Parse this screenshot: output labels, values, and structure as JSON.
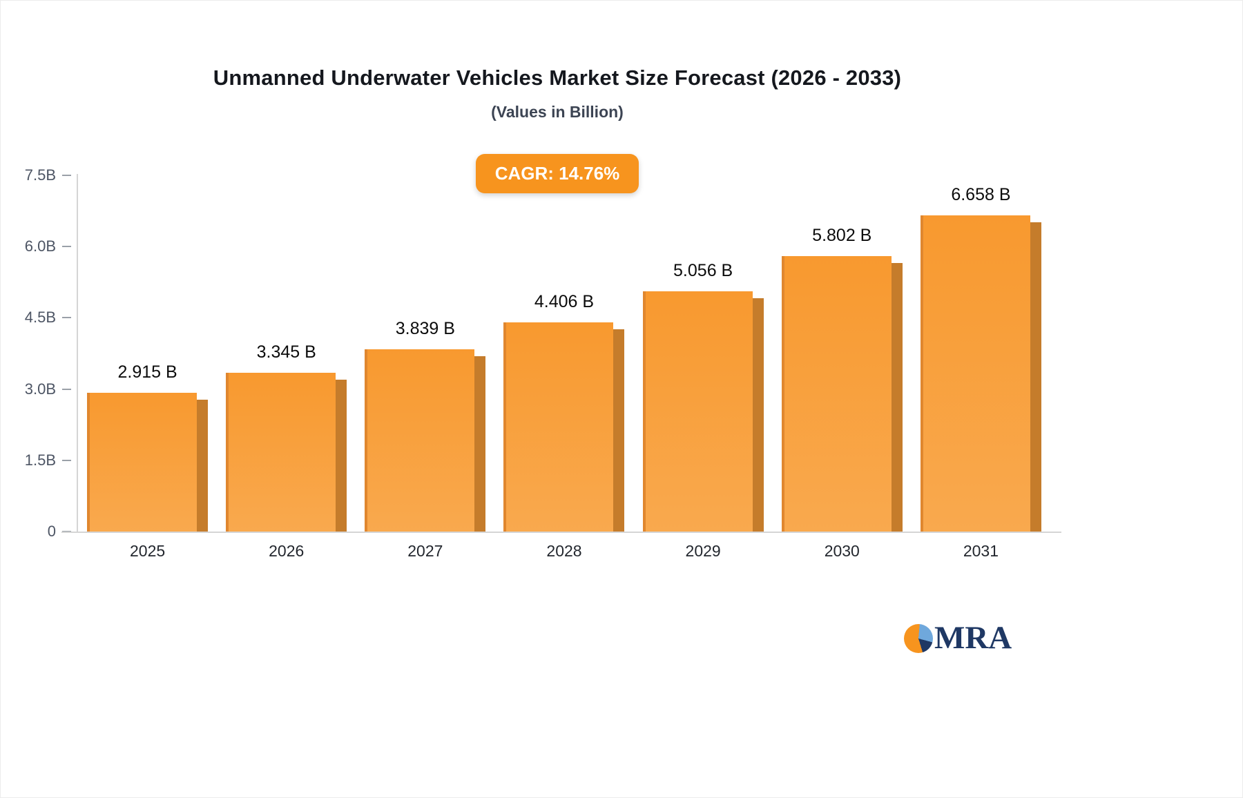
{
  "chart_data": {
    "type": "bar",
    "title": "Unmanned Underwater Vehicles Market Size Forecast (2026 - 2033)",
    "subtitle": "(Values in Billion)",
    "categories": [
      "2025",
      "2026",
      "2027",
      "2028",
      "2029",
      "2030",
      "2031"
    ],
    "values": [
      2.915,
      3.345,
      3.839,
      4.406,
      5.056,
      5.802,
      6.658
    ],
    "value_labels": [
      "2.915 B",
      "3.345 B",
      "3.839 B",
      "4.406 B",
      "5.056 B",
      "5.802 B",
      "6.658 B"
    ],
    "xlabel": "",
    "ylabel": "",
    "ylim": [
      0,
      7.5
    ],
    "y_ticks": [
      {
        "label": "0",
        "value": 0
      },
      {
        "label": "1.5B",
        "value": 1.5
      },
      {
        "label": "3.0B",
        "value": 3.0
      },
      {
        "label": "4.5B",
        "value": 4.5
      },
      {
        "label": "6.0B",
        "value": 6.0
      },
      {
        "label": "7.5B",
        "value": 7.5
      }
    ],
    "grid": false,
    "legend": "none",
    "annotations": [
      "CAGR: 14.76%"
    ]
  },
  "badge": {
    "label": "CAGR: 14.76%"
  },
  "logo": {
    "text": "MRA"
  },
  "colors": {
    "bar_face": "#F8992F",
    "bar_face_light": "#F9A94E",
    "bar_side": "#C57C2B",
    "bar_edge": "#E0872F",
    "badge_bg": "#F7941E",
    "badge_text": "#FFFFFF",
    "axis_line": "#D5D5D5",
    "logo_navy": "#1F3864",
    "logo_blue": "#6FA8DC",
    "logo_orange": "#F7941E"
  }
}
